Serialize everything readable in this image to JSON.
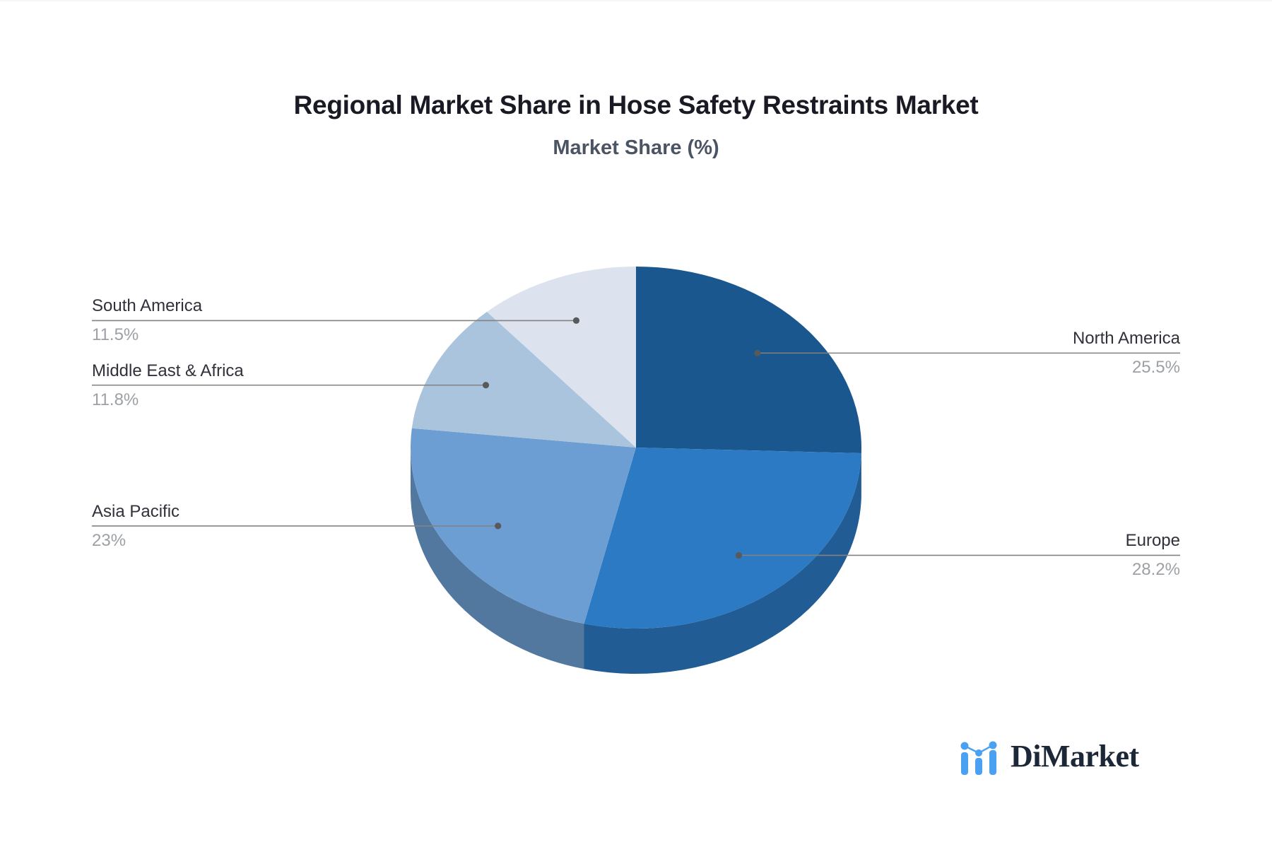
{
  "title": "Regional Market Share in Hose Safety Restraints Market",
  "subtitle": "Market Share (%)",
  "logo": {
    "text": "DiMarket"
  },
  "chart_data": {
    "type": "pie",
    "title": "Regional Market Share in Hose Safety Restraints Market",
    "subtitle": "Market Share (%)",
    "unit": "%",
    "direction": "clockwise",
    "start_angle_deg": 0,
    "background": "#ffffff",
    "label_line_color": "#828282",
    "dot_color": "#58595b",
    "label_text_color": "#30313a",
    "value_text_color": "#9da0a6",
    "brand_accent": "#4aa0f1",
    "segments": [
      {
        "label": "North America",
        "value": 25.5,
        "display": "25.5%",
        "color": "#1a578e",
        "side": "right"
      },
      {
        "label": "Europe",
        "value": 28.2,
        "display": "28.2%",
        "color": "#2b7ac3",
        "side": "right"
      },
      {
        "label": "Asia Pacific",
        "value": 23,
        "display": "23%",
        "color": "#6d9ed3",
        "side": "left"
      },
      {
        "label": "Middle East & Africa",
        "value": 11.8,
        "display": "11.8%",
        "color": "#aac4de",
        "side": "left"
      },
      {
        "label": "South America",
        "value": 11.5,
        "display": "11.5%",
        "color": "#dce3ee",
        "side": "left"
      }
    ]
  }
}
